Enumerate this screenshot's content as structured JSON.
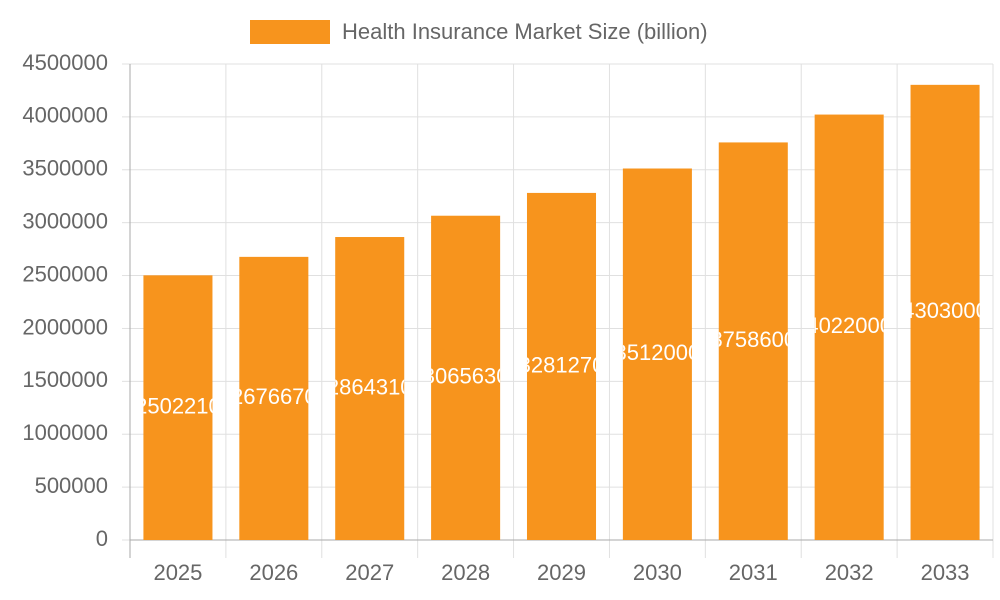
{
  "chart_data": {
    "type": "bar",
    "categories": [
      "2025",
      "2026",
      "2027",
      "2028",
      "2029",
      "2030",
      "2031",
      "2032",
      "2033"
    ],
    "series": [
      {
        "name": "Health Insurance Market Size (billion)",
        "color": "#f7941d",
        "values": [
          2502210,
          2676670,
          2864310,
          3065630,
          3281270,
          3512000,
          3758600,
          4022000,
          4303000
        ]
      }
    ],
    "ylim": [
      0,
      4500000
    ],
    "yticks": [
      0,
      500000,
      1000000,
      1500000,
      2000000,
      2500000,
      3000000,
      3500000,
      4000000,
      4500000
    ],
    "grid": true,
    "legend": "top"
  }
}
